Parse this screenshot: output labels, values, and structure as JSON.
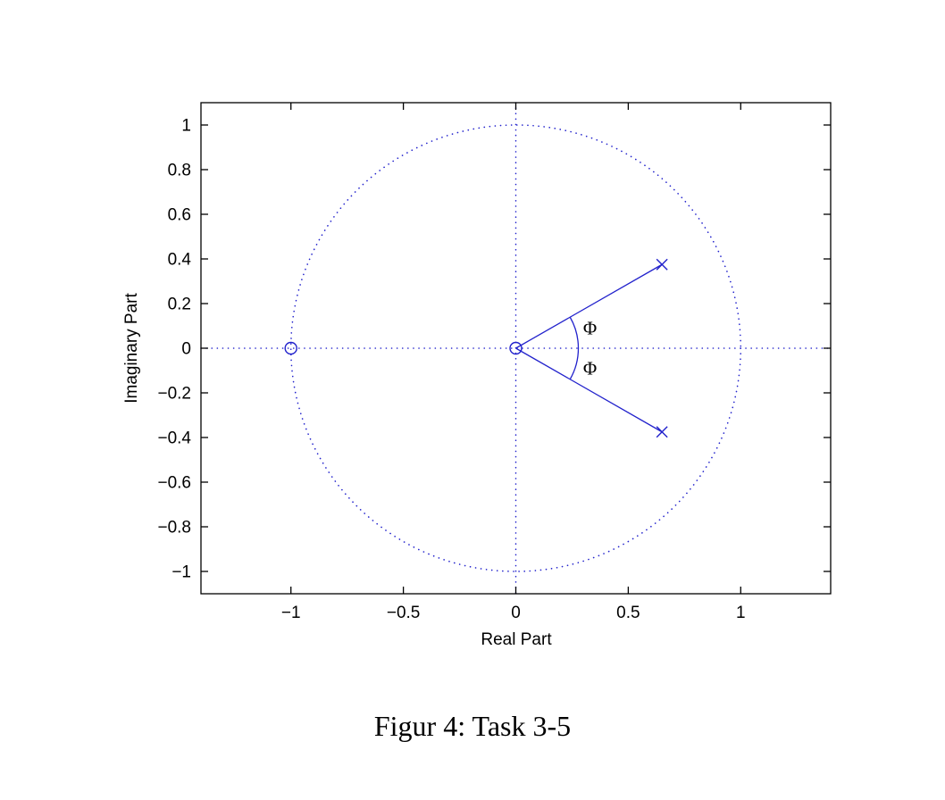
{
  "figure": {
    "caption": "Figur 4: Task 3-5"
  },
  "chart_data": {
    "type": "scatter",
    "subtype": "pole-zero-plot",
    "title": "",
    "xlabel": "Real Part",
    "ylabel": "Imaginary Part",
    "xlim": [
      -1.4,
      1.4
    ],
    "ylim": [
      -1.1,
      1.1
    ],
    "grid": false,
    "x_ticks": {
      "values": [
        -1,
        -0.5,
        0,
        0.5,
        1
      ],
      "labels": [
        "−1",
        "−0.5",
        "0",
        "0.5",
        "1"
      ]
    },
    "y_ticks": {
      "values": [
        -1,
        -0.8,
        -0.6,
        -0.4,
        -0.2,
        0,
        0.2,
        0.4,
        0.6,
        0.8,
        1
      ],
      "labels": [
        "−1",
        "−0.8",
        "−0.6",
        "−0.4",
        "−0.2",
        "0",
        "0.2",
        "0.4",
        "0.6",
        "0.8",
        "1"
      ]
    },
    "unit_circle": {
      "cx": 0,
      "cy": 0,
      "r": 1,
      "style": "dotted"
    },
    "axes_lines": {
      "horizontal_y": 0,
      "vertical_x": 0,
      "style": "dotted"
    },
    "zeros": [
      {
        "x": -1,
        "y": 0
      },
      {
        "x": 0,
        "y": 0
      }
    ],
    "poles": [
      {
        "x": 0.65,
        "y": 0.375
      },
      {
        "x": 0.65,
        "y": -0.375
      }
    ],
    "pole_vectors_from_origin": true,
    "angle_arcs": [
      {
        "from_deg": 0,
        "to_deg": 30,
        "label": "Φ"
      },
      {
        "from_deg": 0,
        "to_deg": -30,
        "label": "Φ"
      }
    ],
    "colors": {
      "data": "#2222cc",
      "axis": "#000000",
      "background": "#ffffff"
    }
  }
}
